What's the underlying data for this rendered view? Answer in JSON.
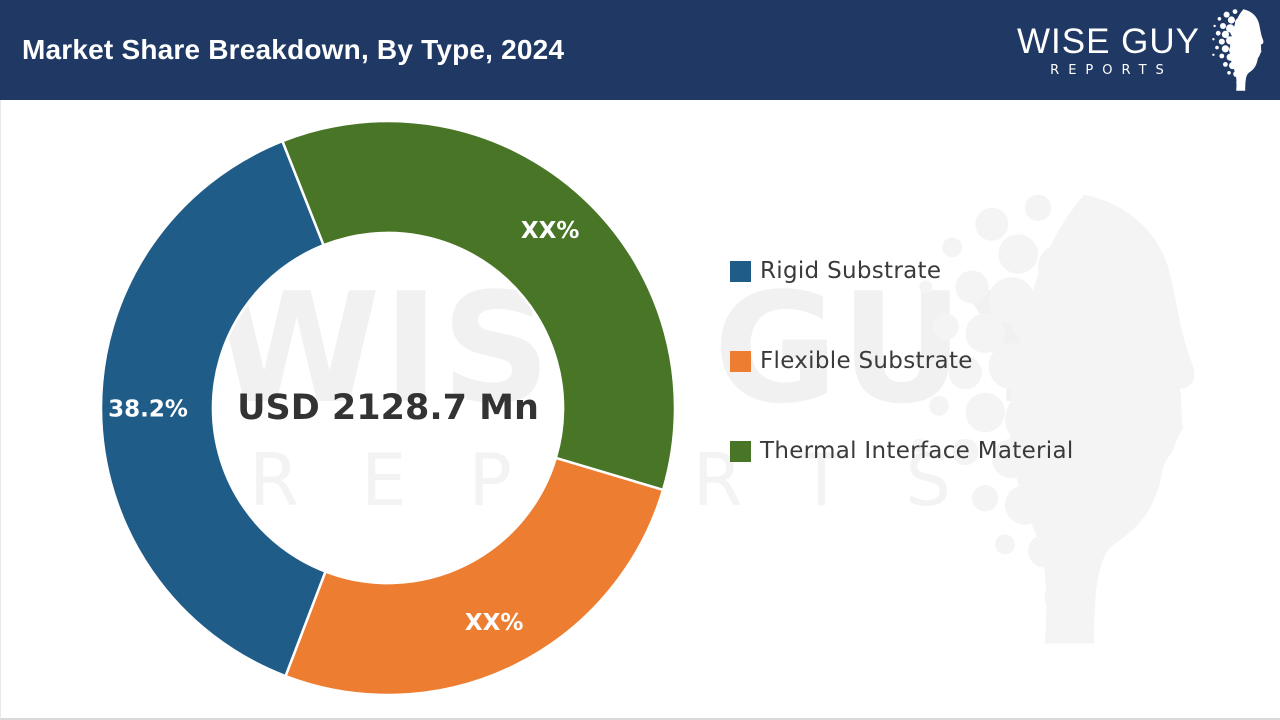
{
  "header": {
    "title": "Market Share Breakdown, By Type, 2024",
    "logo": {
      "brand": "WISE GUY",
      "sub": "REPORTS"
    }
  },
  "watermark": {
    "line1": "WISE GUY",
    "line2": "REPORTS"
  },
  "chart_data": {
    "type": "donut",
    "title": "Market Share Breakdown, By Type, 2024",
    "center_label": "USD 2128.7 Mn",
    "start_angle_deg": 200.9,
    "clockwise": true,
    "hole_ratio": 0.61,
    "slices": [
      {
        "name": "Rigid Substrate",
        "value": 38.2,
        "label": "38.2%",
        "color": "#1F5C87"
      },
      {
        "name": "Thermal Interface Material",
        "value": 35.6,
        "label": "XX%",
        "color": "#497526"
      },
      {
        "name": "Flexible Substrate",
        "value": 26.2,
        "label": "XX%",
        "color": "#ED7D31"
      }
    ],
    "legend_position": "right",
    "legend": [
      {
        "label": "Rigid Substrate",
        "color": "#1F5C87"
      },
      {
        "label": "Flexible Substrate",
        "color": "#ED7D31"
      },
      {
        "label": "Thermal Interface Material",
        "color": "#497526"
      }
    ]
  },
  "colors": {
    "header_bg": "#1F3864",
    "slice_gap": "#FFFFFF",
    "center_text": "#333333",
    "legend_text": "#3A3A3A",
    "watermark": "#F2F2F2"
  }
}
